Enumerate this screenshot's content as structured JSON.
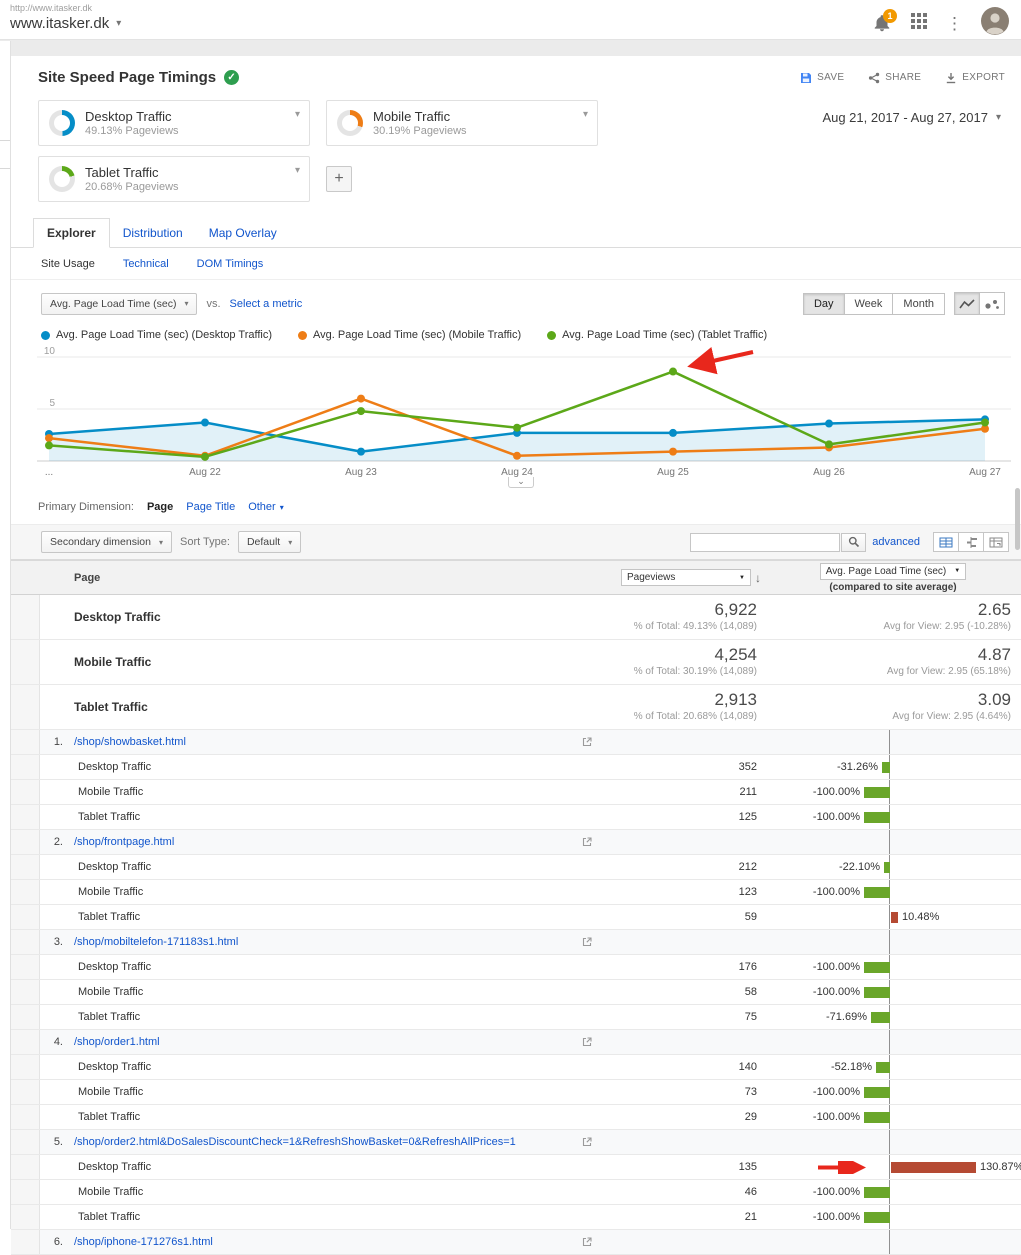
{
  "icons": {
    "check": "✓",
    "caret_down": "▾",
    "triangle_down": "▼",
    "sort_desc": "↓",
    "collapse": "⌄",
    "add": "+",
    "kebab": "⋮"
  },
  "colors": {
    "link": "#1155cc",
    "negative_bar": "#6aa62a",
    "positive_bar": "#b54a33",
    "arrow": "#e8271c",
    "axis": "#909090"
  },
  "topbar": {
    "url": "http://www.itasker.dk",
    "site_name": "www.itasker.dk",
    "notification_count": "1"
  },
  "report": {
    "title": "Site Speed Page Timings",
    "save_label": "SAVE",
    "share_label": "SHARE",
    "export_label": "EXPORT",
    "date_range": "Aug 21, 2017 - Aug 27, 2017"
  },
  "segments": [
    {
      "name": "Desktop Traffic",
      "subtitle": "49.13% Pageviews",
      "pct": 49.13,
      "color": "#058dc7"
    },
    {
      "name": "Mobile Traffic",
      "subtitle": "30.19% Pageviews",
      "pct": 30.19,
      "color": "#ee7d16"
    },
    {
      "name": "Tablet Traffic",
      "subtitle": "20.68% Pageviews",
      "pct": 20.68,
      "color": "#5ca819"
    }
  ],
  "tabs": {
    "items": [
      "Explorer",
      "Distribution",
      "Map Overlay"
    ],
    "active": "Explorer"
  },
  "subnav": {
    "items": [
      "Site Usage",
      "Technical",
      "DOM Timings"
    ],
    "active": "Site Usage"
  },
  "metric_bar": {
    "metric_select": "Avg. Page Load Time (sec)",
    "vs_label": "vs.",
    "select_metric": "Select a metric",
    "granularity": [
      "Day",
      "Week",
      "Month"
    ],
    "granularity_active": "Day"
  },
  "chart_data": {
    "type": "line",
    "x": [
      "...",
      "Aug 22",
      "Aug 23",
      "Aug 24",
      "Aug 25",
      "Aug 26",
      "Aug 27"
    ],
    "ylim": [
      0,
      10
    ],
    "yticks": [
      5,
      10
    ],
    "grid": true,
    "legend_position": "top",
    "series": [
      {
        "name": "Avg. Page Load Time (sec) (Desktop Traffic)",
        "color": "#058dc7",
        "area_fill": true,
        "values": [
          2.6,
          3.7,
          0.9,
          2.7,
          2.7,
          3.6,
          4.0
        ]
      },
      {
        "name": "Avg. Page Load Time (sec) (Mobile Traffic)",
        "color": "#ee7d16",
        "area_fill": false,
        "values": [
          2.2,
          0.5,
          6.0,
          0.5,
          0.9,
          1.3,
          3.1
        ]
      },
      {
        "name": "Avg. Page Load Time (sec) (Tablet Traffic)",
        "color": "#5ca819",
        "area_fill": false,
        "values": [
          1.5,
          0.4,
          4.8,
          3.2,
          8.6,
          1.6,
          3.7
        ]
      }
    ],
    "annotations": [
      "red arrow pointing at Tablet Traffic peak on Aug 25"
    ]
  },
  "primary_dimension": {
    "label": "Primary Dimension:",
    "options": [
      "Page",
      "Page Title",
      "Other"
    ],
    "active": "Page"
  },
  "table_toolbar": {
    "secondary_dimension": "Secondary dimension",
    "sort_type_label": "Sort Type:",
    "sort_type_value": "Default",
    "search_value": "",
    "advanced_label": "advanced"
  },
  "table": {
    "header": {
      "page": "Page",
      "pageviews": "Pageviews",
      "metric": "Avg. Page Load Time (sec)",
      "metric_note": "(compared to site average)"
    },
    "summary_rows": [
      {
        "name": "Desktop Traffic",
        "pageviews": "6,922",
        "pv_sub": "% of Total: 49.13% (14,089)",
        "metric": "2.65",
        "metric_sub": "Avg for View: 2.95 (-10.28%)"
      },
      {
        "name": "Mobile Traffic",
        "pageviews": "4,254",
        "pv_sub": "% of Total: 30.19% (14,089)",
        "metric": "4.87",
        "metric_sub": "Avg for View: 2.95 (65.18%)"
      },
      {
        "name": "Tablet Traffic",
        "pageviews": "2,913",
        "pv_sub": "% of Total: 20.68% (14,089)",
        "metric": "3.09",
        "metric_sub": "Avg for View: 2.95 (4.64%)"
      }
    ],
    "rows": [
      {
        "num": "1.",
        "page": "/shop/showbasket.html",
        "segments": [
          {
            "name": "Desktop Traffic",
            "pageviews": "352",
            "change": "-31.26%",
            "change_value": -31.26
          },
          {
            "name": "Mobile Traffic",
            "pageviews": "211",
            "change": "-100.00%",
            "change_value": -100
          },
          {
            "name": "Tablet Traffic",
            "pageviews": "125",
            "change": "-100.00%",
            "change_value": -100
          }
        ]
      },
      {
        "num": "2.",
        "page": "/shop/frontpage.html",
        "segments": [
          {
            "name": "Desktop Traffic",
            "pageviews": "212",
            "change": "-22.10%",
            "change_value": -22.1
          },
          {
            "name": "Mobile Traffic",
            "pageviews": "123",
            "change": "-100.00%",
            "change_value": -100
          },
          {
            "name": "Tablet Traffic",
            "pageviews": "59",
            "change": "10.48%",
            "change_value": 10.48
          }
        ]
      },
      {
        "num": "3.",
        "page": "/shop/mobiltelefon-171183s1.html",
        "segments": [
          {
            "name": "Desktop Traffic",
            "pageviews": "176",
            "change": "-100.00%",
            "change_value": -100
          },
          {
            "name": "Mobile Traffic",
            "pageviews": "58",
            "change": "-100.00%",
            "change_value": -100
          },
          {
            "name": "Tablet Traffic",
            "pageviews": "75",
            "change": "-71.69%",
            "change_value": -71.69
          }
        ]
      },
      {
        "num": "4.",
        "page": "/shop/order1.html",
        "segments": [
          {
            "name": "Desktop Traffic",
            "pageviews": "140",
            "change": "-52.18%",
            "change_value": -52.18
          },
          {
            "name": "Mobile Traffic",
            "pageviews": "73",
            "change": "-100.00%",
            "change_value": -100
          },
          {
            "name": "Tablet Traffic",
            "pageviews": "29",
            "change": "-100.00%",
            "change_value": -100
          }
        ]
      },
      {
        "num": "5.",
        "page": "/shop/order2.html&DoSalesDiscountCheck=1&RefreshShowBasket=0&RefreshAllPrices=1",
        "segments": [
          {
            "name": "Desktop Traffic",
            "pageviews": "135",
            "change": "130.87%",
            "change_value": 130.87,
            "arrow": true
          },
          {
            "name": "Mobile Traffic",
            "pageviews": "46",
            "change": "-100.00%",
            "change_value": -100
          },
          {
            "name": "Tablet Traffic",
            "pageviews": "21",
            "change": "-100.00%",
            "change_value": -100
          }
        ]
      },
      {
        "num": "6.",
        "page": "/shop/iphone-171276s1.html",
        "segments": []
      }
    ]
  },
  "annotations": {
    "table_arrow": "red arrow pointing at 130.87% bar (row 5, Desktop Traffic)"
  }
}
